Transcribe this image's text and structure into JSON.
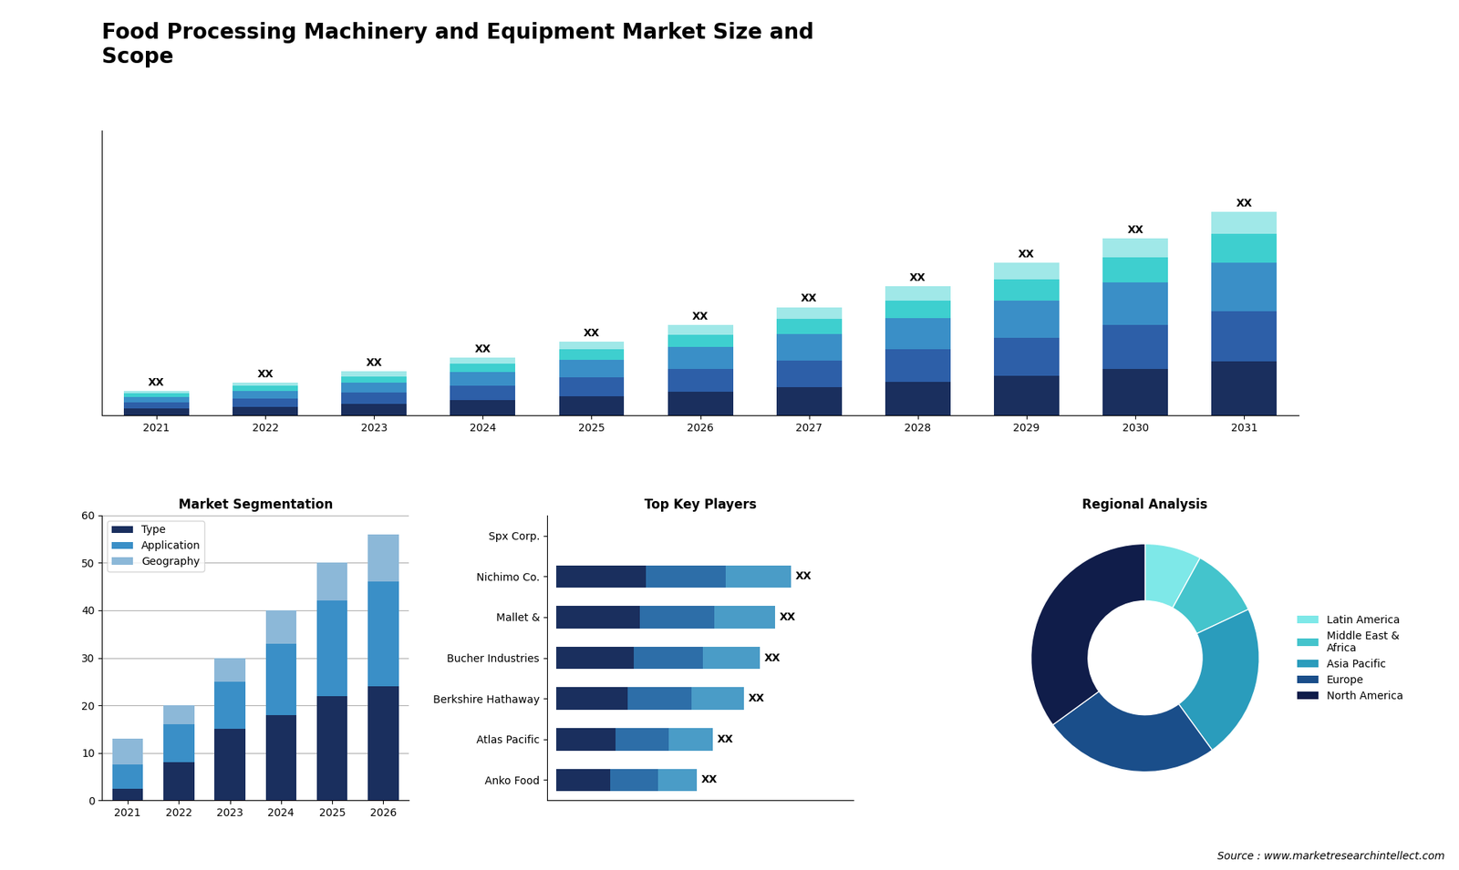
{
  "title": "Food Processing Machinery and Equipment Market Size and\nScope",
  "annotations": [
    "Source : www.marketresearchintellect.com"
  ],
  "chart_data": [
    {
      "type": "bar",
      "stacked": true,
      "categories": [
        "2021",
        "2022",
        "2023",
        "2024",
        "2025",
        "2026",
        "2027",
        "2028",
        "2029",
        "2030",
        "2031"
      ],
      "series": [
        {
          "color": "#1a2f5e",
          "values": [
            1.0,
            1.3,
            1.7,
            2.2,
            2.8,
            3.4,
            4.1,
            4.9,
            5.8,
            6.7,
            7.8
          ]
        },
        {
          "color": "#2d5fa8",
          "values": [
            0.9,
            1.2,
            1.6,
            2.1,
            2.7,
            3.3,
            3.9,
            4.7,
            5.5,
            6.4,
            7.3
          ]
        },
        {
          "color": "#3a8fc7",
          "values": [
            0.8,
            1.1,
            1.5,
            2.0,
            2.6,
            3.2,
            3.8,
            4.5,
            5.3,
            6.2,
            7.1
          ]
        },
        {
          "color": "#3ecfcf",
          "values": [
            0.5,
            0.7,
            0.9,
            1.2,
            1.5,
            1.8,
            2.2,
            2.6,
            3.1,
            3.6,
            4.1
          ]
        },
        {
          "color": "#a0e8e8",
          "values": [
            0.4,
            0.5,
            0.7,
            0.9,
            1.1,
            1.4,
            1.7,
            2.0,
            2.4,
            2.8,
            3.2
          ]
        }
      ],
      "value_labels": [
        "XX",
        "XX",
        "XX",
        "XX",
        "XX",
        "XX",
        "XX",
        "XX",
        "XX",
        "XX",
        "XX"
      ],
      "ylim": [
        0,
        41.3
      ],
      "tick_labels": "x"
    },
    {
      "type": "bar",
      "stacked": true,
      "title": "Market Segmentation",
      "categories": [
        "2021",
        "2022",
        "2023",
        "2024",
        "2025",
        "2026"
      ],
      "series": [
        {
          "name": "Type",
          "color": "#1a2f5e",
          "values": [
            2.5,
            8.0,
            15.0,
            18.0,
            22.0,
            24.0
          ]
        },
        {
          "name": "Application",
          "color": "#3a8fc7",
          "values": [
            5.0,
            8.0,
            10.0,
            15.0,
            20.0,
            22.0
          ]
        },
        {
          "name": "Geography",
          "color": "#8cb8d8",
          "values": [
            5.5,
            4.0,
            5.0,
            7.0,
            8.0,
            10.0
          ]
        }
      ],
      "ylim": [
        0,
        60
      ],
      "yticks": [
        0,
        10,
        20,
        30,
        40,
        50,
        60
      ],
      "grid": true,
      "legend": "upper left"
    },
    {
      "type": "bar",
      "stacked": true,
      "orientation": "horizontal",
      "title": "Top Key Players",
      "categories": [
        "Spx Corp.",
        "Nichimo Co.",
        "Mallet &",
        "Bucher Industries",
        "Berkshire Hathaway",
        "Atlas Pacific",
        "Anko Food"
      ],
      "series": [
        {
          "color": "#1a2f5e",
          "values": [
            0,
            2.85,
            2.66,
            2.47,
            2.28,
            1.9,
            1.71
          ]
        },
        {
          "color": "#2d6ea8",
          "values": [
            0,
            2.55,
            2.38,
            2.21,
            2.04,
            1.7,
            1.53
          ]
        },
        {
          "color": "#4a9cc7",
          "values": [
            0,
            2.1,
            1.96,
            1.82,
            1.68,
            1.4,
            1.26
          ]
        }
      ],
      "value_labels": [
        null,
        "XX",
        "XX",
        "XX",
        "XX",
        "XX",
        "XX"
      ],
      "xlim": [
        -0.3,
        9.5
      ],
      "tick_labels": "y"
    },
    {
      "type": "pie",
      "title": "Regional Analysis",
      "categories": [
        "Latin America",
        "Middle East &\nAfrica",
        "Asia Pacific",
        "Europe",
        "North America"
      ],
      "values": [
        8,
        10,
        22,
        25,
        35
      ],
      "colors": [
        "#7ee8e8",
        "#44c4cc",
        "#2a9cbc",
        "#1a4e8a",
        "#101d4a"
      ],
      "legend": "center left"
    }
  ]
}
